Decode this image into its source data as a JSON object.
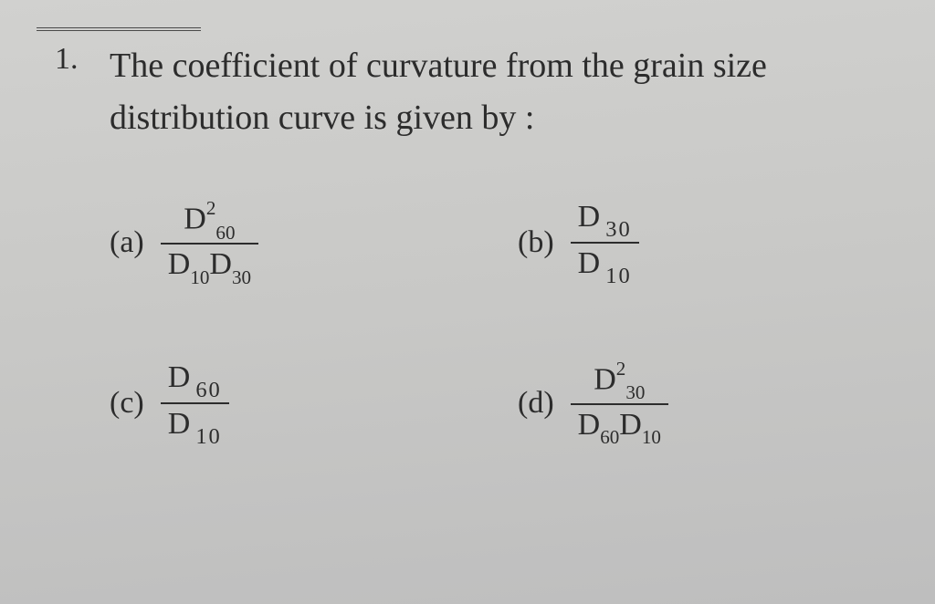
{
  "question": {
    "number": "1.",
    "text": "The coefficient of curvature from the grain size distribution curve is given by :"
  },
  "options": {
    "a": {
      "label": "(a)",
      "num_base": "D",
      "num_sup": "2",
      "num_sub": "60",
      "den_part1_base": "D",
      "den_part1_sub": "10",
      "den_part2_base": "D",
      "den_part2_sub": "30"
    },
    "b": {
      "label": "(b)",
      "num_base": "D",
      "num_sub": "30",
      "den_base": "D",
      "den_sub": "10"
    },
    "c": {
      "label": "(c)",
      "num_base": "D",
      "num_sub": "60",
      "den_base": "D",
      "den_sub": "10"
    },
    "d": {
      "label": "(d)",
      "num_base": "D",
      "num_sup": "2",
      "num_sub": "30",
      "den_part1_base": "D",
      "den_part1_sub": "60",
      "den_part2_base": "D",
      "den_part2_sub": "10"
    }
  },
  "style": {
    "background_color": "#cfcfcd",
    "text_color": "#2c2c2c",
    "font_family": "Times New Roman",
    "question_fontsize": 38,
    "option_fontsize": 34,
    "rule_color": "#4a4a4a"
  }
}
